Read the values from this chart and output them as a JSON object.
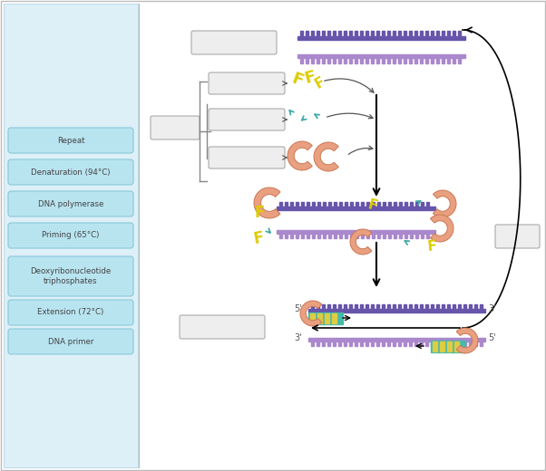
{
  "legend_labels": [
    "Repeat",
    "Denaturation (94°C)",
    "DNA polymerase",
    "Priming (65°C)",
    "Deoxyribonucleotide\ntriphosphates",
    "Extension (72°C)",
    "DNA primer"
  ],
  "background_color": "#ffffff",
  "border_color": "#cccccc",
  "left_panel_color": "#ddf0f7",
  "legend_box_color": "#b8e4f0",
  "legend_box_edge": "#88c8dc",
  "legend_text_color": "#444444",
  "dna_purple_dark": "#6655aa",
  "dna_purple_light": "#aa88cc",
  "primer_teal": "#44bbaa",
  "primer_yellow": "#ddcc44",
  "polymerase_fill": "#e8a080",
  "polymerase_edge": "#cc7755",
  "nucleotide_yellow": "#ddcc00",
  "teal_arrow": "#44aaaa",
  "box_fill": "#eeeeee",
  "box_edge": "#aaaaaa"
}
